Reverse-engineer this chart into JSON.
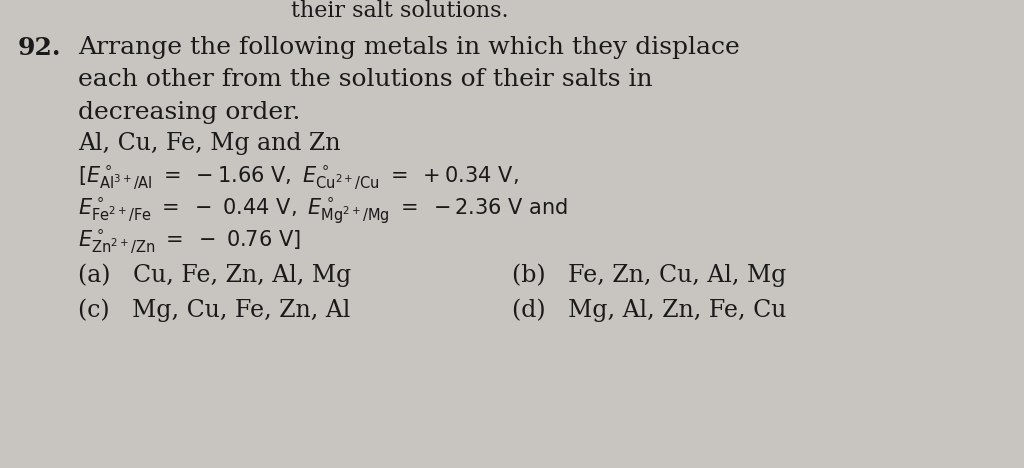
{
  "background_color": "#c8c4c0",
  "text_color": "#1a1a1a",
  "top_header": "their salt solutions.",
  "question_number": "92.",
  "question_line1": "Arrange the following metals in which they displace",
  "question_line2": "each other from the solutions of their salts in",
  "question_line3": "decreasing order.",
  "metals_line": "Al, Cu, Fe, Mg and Zn",
  "option_a": "(a)   Cu, Fe, Zn, Al, Mg",
  "option_b": "(b)   Fe, Zn, Cu, Al, Mg",
  "option_c": "(c)   Mg, Cu, Fe, Zn, Al",
  "option_d": "(d)   Mg, Al, Zn, Fe, Cu",
  "font_size_main": 16,
  "font_size_eq": 15,
  "font_size_options": 17
}
